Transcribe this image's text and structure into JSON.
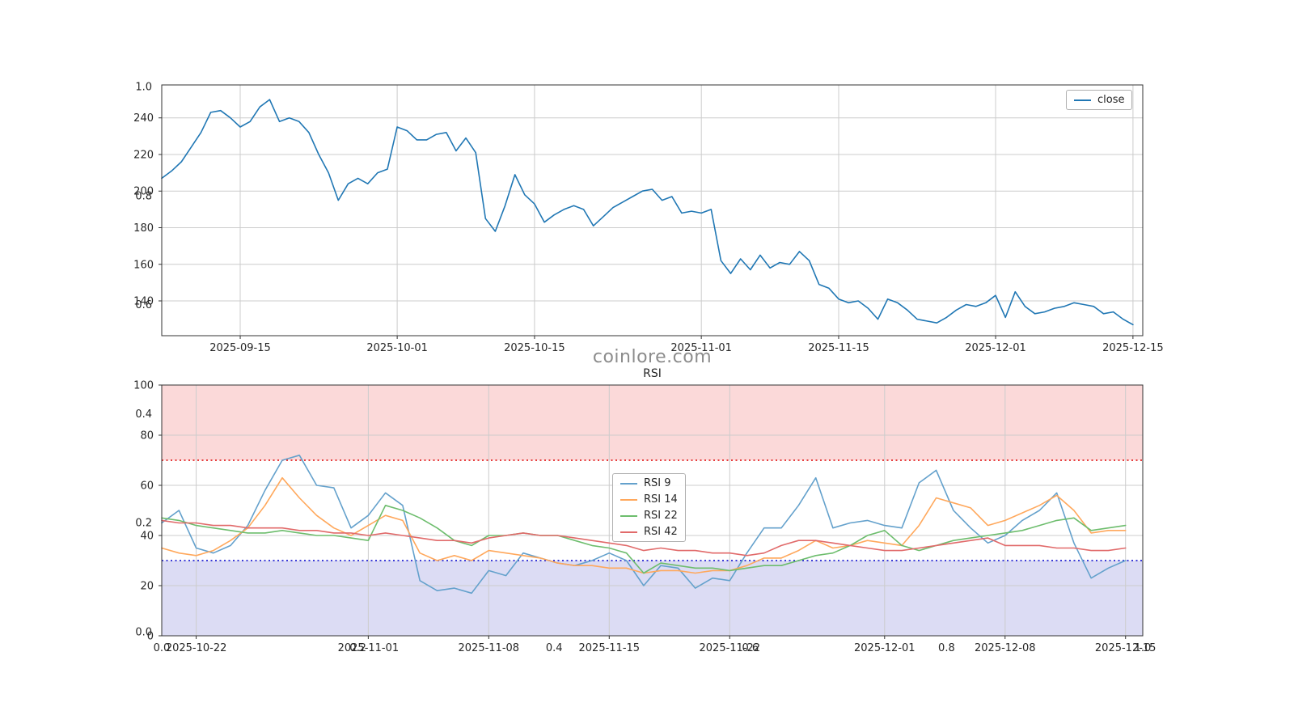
{
  "watermark": "coinlore.com",
  "rsi_panel": {
    "title": "RSI"
  },
  "colors": {
    "grid": "#cccccc",
    "spine": "#333333",
    "tick_text": "#262626",
    "overbought_fill": "#fbd9d9",
    "oversold_fill": "#dcdcf4",
    "overbought_line": "#dd0000",
    "oversold_line": "#0000cc",
    "watermark": "#8c8c8c"
  },
  "ghost_axis": {
    "y_labels": [
      "1.0",
      "0.8",
      "0.6",
      "0.4",
      "0.2",
      "0.0"
    ],
    "x_labels": [
      "0.0",
      "0.2",
      "0.4",
      "0.6",
      "0.8",
      "1.0"
    ]
  },
  "chart_data": [
    {
      "type": "line",
      "panel": "price",
      "title": "",
      "xlabel": "",
      "ylabel": "",
      "grid": true,
      "legend_position": "upper right",
      "ylim": [
        121,
        258
      ],
      "yticks": [
        240,
        220,
        200,
        180,
        160,
        140
      ],
      "x_start_date": "2025-09-07",
      "x_span_days": 100,
      "xticks": [
        "2025-09-15",
        "2025-10-01",
        "2025-10-15",
        "2025-11-01",
        "2025-11-15",
        "2025-12-01",
        "2025-12-15"
      ],
      "series": [
        {
          "name": "close",
          "color": "#2077b4",
          "values": [
            207,
            211,
            216,
            224,
            232,
            243,
            244,
            240,
            235,
            238,
            246,
            250,
            238,
            240,
            238,
            232,
            220,
            210,
            195,
            204,
            207,
            204,
            210,
            212,
            235,
            233,
            228,
            228,
            231,
            232,
            222,
            229,
            221,
            185,
            178,
            192,
            209,
            198,
            193,
            183,
            187,
            190,
            192,
            190,
            181,
            186,
            191,
            194,
            197,
            200,
            201,
            195,
            197,
            188,
            189,
            188,
            190,
            162,
            155,
            163,
            157,
            165,
            158,
            161,
            160,
            167,
            162,
            149,
            147,
            141,
            139,
            140,
            136,
            130,
            141,
            139,
            135,
            130,
            129,
            128,
            131,
            135,
            138,
            137,
            139,
            143,
            131,
            145,
            137,
            133,
            134,
            136,
            137,
            139,
            138,
            137,
            133,
            134,
            130,
            127
          ]
        }
      ]
    },
    {
      "type": "line",
      "panel": "rsi",
      "title": "RSI",
      "xlabel": "",
      "ylabel": "",
      "grid": true,
      "legend_position": "center left",
      "ylim": [
        0,
        100
      ],
      "yticks": [
        100,
        80,
        60,
        40,
        20,
        0
      ],
      "overbought_level": 70,
      "oversold_level": 30,
      "x_start_date": "2025-10-20",
      "x_span_days": 57,
      "xticks": [
        "2025-10-22",
        "2025-11-01",
        "2025-11-08",
        "2025-11-15",
        "2025-11-22",
        "2025-12-01",
        "2025-12-08",
        "2025-12-15"
      ],
      "series": [
        {
          "name": "RSI 9",
          "color": "#64a1cc",
          "values": [
            45,
            50,
            35,
            33,
            36,
            44,
            58,
            70,
            72,
            60,
            59,
            43,
            48,
            57,
            52,
            22,
            18,
            19,
            17,
            26,
            24,
            33,
            31,
            29,
            28,
            30,
            33,
            30,
            20,
            28,
            27,
            19,
            23,
            22,
            33,
            43,
            43,
            52,
            63,
            43,
            45,
            46,
            44,
            43,
            61,
            66,
            50,
            43,
            37,
            40,
            46,
            50,
            57,
            37,
            23,
            27,
            30
          ]
        },
        {
          "name": "RSI 14",
          "color": "#ffa85c",
          "values": [
            35,
            33,
            32,
            34,
            38,
            43,
            52,
            63,
            55,
            48,
            43,
            40,
            44,
            48,
            46,
            33,
            30,
            32,
            30,
            34,
            33,
            32,
            31,
            29,
            28,
            28,
            27,
            27,
            25,
            26,
            26,
            25,
            26,
            26,
            28,
            31,
            31,
            34,
            38,
            35,
            36,
            38,
            37,
            36,
            44,
            55,
            53,
            51,
            44,
            46,
            49,
            52,
            56,
            50,
            41,
            42,
            42
          ]
        },
        {
          "name": "RSI 22",
          "color": "#6dbd6d",
          "values": [
            47,
            46,
            44,
            43,
            42,
            41,
            41,
            42,
            41,
            40,
            40,
            39,
            38,
            52,
            50,
            47,
            43,
            38,
            36,
            40,
            40,
            41,
            40,
            40,
            38,
            36,
            35,
            33,
            25,
            29,
            28,
            27,
            27,
            26,
            27,
            28,
            28,
            30,
            32,
            33,
            36,
            40,
            42,
            36,
            34,
            36,
            38,
            39,
            40,
            41,
            42,
            44,
            46,
            47,
            42,
            43,
            44
          ]
        },
        {
          "name": "RSI 42",
          "color": "#e16a6a",
          "values": [
            46,
            45,
            45,
            44,
            44,
            43,
            43,
            43,
            42,
            42,
            41,
            41,
            40,
            41,
            40,
            39,
            38,
            38,
            37,
            39,
            40,
            41,
            40,
            40,
            39,
            38,
            37,
            36,
            34,
            35,
            34,
            34,
            33,
            33,
            32,
            33,
            36,
            38,
            38,
            37,
            36,
            35,
            34,
            34,
            35,
            36,
            37,
            38,
            39,
            36,
            36,
            36,
            35,
            35,
            34,
            34,
            35
          ]
        }
      ]
    }
  ]
}
